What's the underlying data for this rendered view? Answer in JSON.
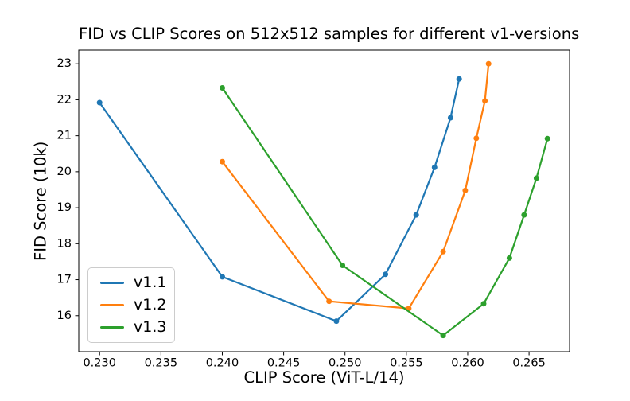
{
  "chart_data": {
    "type": "line",
    "title": "FID vs CLIP Scores on 512x512 samples for different v1-versions",
    "xlabel": "CLIP Score (ViT-L/14)",
    "ylabel": "FID Score (10k)",
    "xlim": [
      0.2283,
      0.2683
    ],
    "ylim": [
      15.0,
      23.38
    ],
    "grid": false,
    "background": "#ffffff",
    "spine_color": "#000000",
    "legend_position": "lower left",
    "xticks": {
      "values": [
        0.23,
        0.235,
        0.24,
        0.245,
        0.25,
        0.255,
        0.26,
        0.265
      ],
      "labels": [
        "0.230",
        "0.235",
        "0.240",
        "0.245",
        "0.250",
        "0.255",
        "0.260",
        "0.265"
      ]
    },
    "yticks": {
      "values": [
        16,
        17,
        18,
        19,
        20,
        21,
        22,
        23
      ],
      "labels": [
        "16",
        "17",
        "18",
        "19",
        "20",
        "21",
        "22",
        "23"
      ]
    },
    "series": [
      {
        "name": "v1.1",
        "color": "#1f77b4",
        "x": [
          0.23,
          0.24,
          0.2493,
          0.2533,
          0.2558,
          0.2573,
          0.2586,
          0.2593
        ],
        "y": [
          21.92,
          17.08,
          15.85,
          17.15,
          18.8,
          20.12,
          21.5,
          22.58
        ]
      },
      {
        "name": "v1.2",
        "color": "#ff7f0e",
        "x": [
          0.24,
          0.2487,
          0.2552,
          0.258,
          0.2598,
          0.2607,
          0.2614,
          0.2617
        ],
        "y": [
          20.28,
          16.4,
          16.2,
          17.78,
          19.48,
          20.93,
          21.97,
          23.0
        ]
      },
      {
        "name": "v1.3",
        "color": "#2ca02c",
        "x": [
          0.24,
          0.2498,
          0.258,
          0.2613,
          0.2634,
          0.2646,
          0.2656,
          0.2665
        ],
        "y": [
          22.33,
          17.4,
          15.45,
          16.33,
          17.6,
          18.8,
          19.82,
          20.92
        ]
      }
    ]
  }
}
